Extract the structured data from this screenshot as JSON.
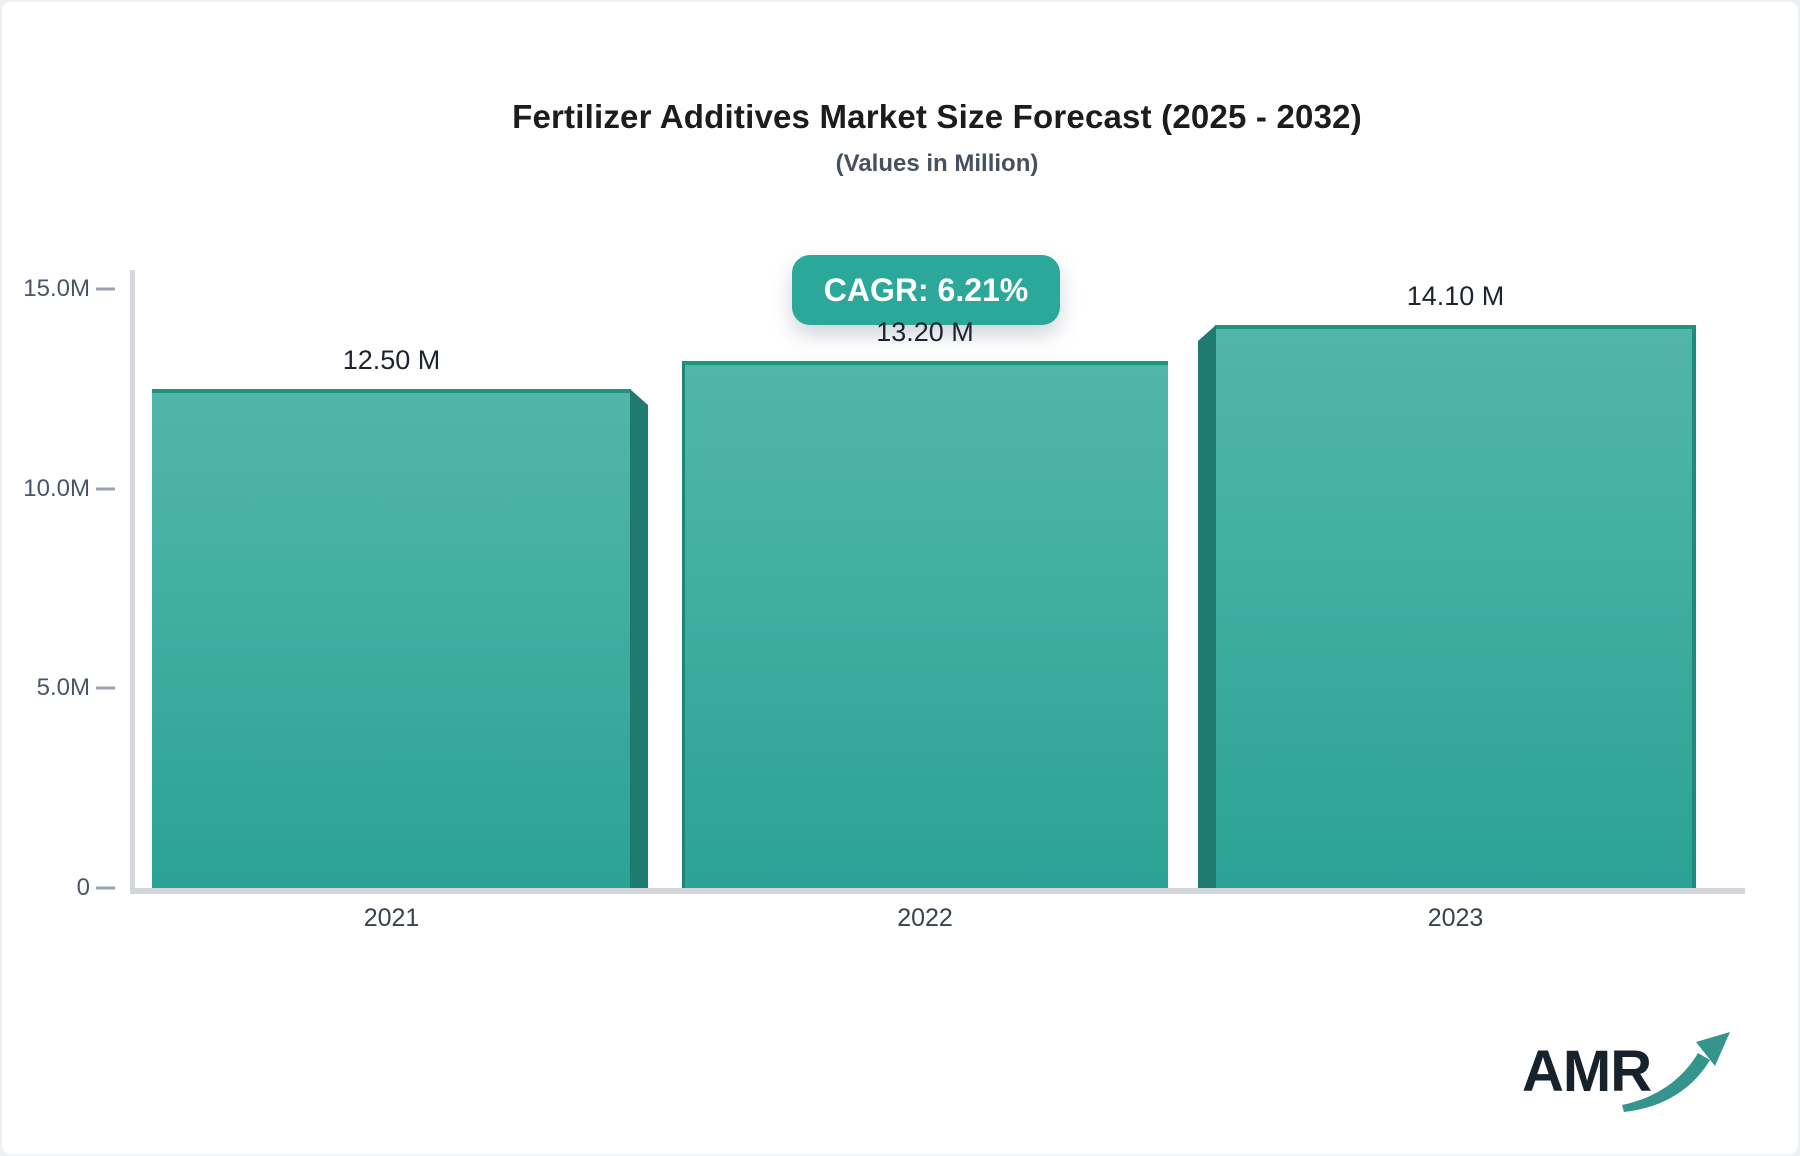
{
  "title": "Fertilizer Additives Market Size Forecast (2025 - 2032)",
  "subtitle": "(Values in Million)",
  "cagr_badge_label": "CAGR: 6.21%",
  "logo_text": "AMR",
  "colors": {
    "bar_top": "#52b5a9",
    "bar_bottom": "#2ba295",
    "bar_side_3d": "#1e7a6e",
    "badge_background": "#2ba89a",
    "axis_line": "#d2d6db",
    "axis_text": "#4a5566",
    "logo_arrow": "#35948b"
  },
  "chart_data": {
    "type": "bar",
    "title": "Fertilizer Additives Market Size Forecast (2025 - 2032)",
    "subtitle": "(Values in Million)",
    "cagr_percent": 6.21,
    "categories": [
      "2021",
      "2022",
      "2023"
    ],
    "values": [
      12.5,
      13.2,
      14.1
    ],
    "xlabel": "",
    "ylabel": "Values in Million",
    "ylim": [
      0,
      15
    ],
    "grid": false,
    "legend": false,
    "yticks": [
      {
        "value": 0,
        "label": "0"
      },
      {
        "value": 5,
        "label": "5.0M"
      },
      {
        "value": 10,
        "label": "10.0M"
      },
      {
        "value": 15,
        "label": "15.0M"
      }
    ],
    "bars": [
      {
        "category": "2021",
        "value": 12.5,
        "value_label": "12.50 M",
        "bevel": "right"
      },
      {
        "category": "2022",
        "value": 13.2,
        "value_label": "13.20 M",
        "bevel": "none"
      },
      {
        "category": "2023",
        "value": 14.1,
        "value_label": "14.10 M",
        "bevel": "left"
      }
    ]
  }
}
